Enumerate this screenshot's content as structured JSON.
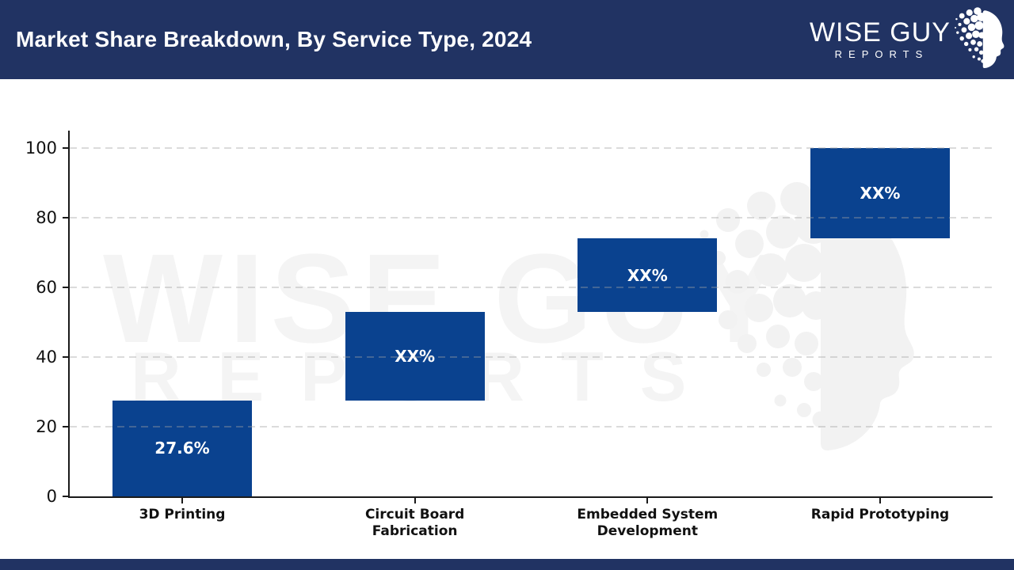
{
  "header": {
    "title": "Market Share Breakdown, By Service Type, 2024",
    "logo": {
      "name": "WISE GUY",
      "sub": "REPORTS"
    }
  },
  "watermark": {
    "line1": "WISE GUY",
    "line2": "REPORTS"
  },
  "colors": {
    "header_bg": "#213363",
    "footer_bg": "#213363",
    "bar": "#0a428f",
    "axis": "#1a1a1a",
    "watermark": "#f2f2f2"
  },
  "chart_data": {
    "type": "bar",
    "subtype": "waterfall",
    "title": "Market Share Breakdown, By Service Type, 2024",
    "categories": [
      "3D Printing",
      "Circuit Board\nFabrication",
      "Embedded System\nDevelopment",
      "Rapid Prototyping"
    ],
    "bars": [
      {
        "category": "3D Printing",
        "start": 0,
        "end": 27.6,
        "label": "27.6%"
      },
      {
        "category": "Circuit Board Fabrication",
        "start": 27.6,
        "end": 53,
        "label": "XX%"
      },
      {
        "category": "Embedded System Development",
        "start": 53,
        "end": 74,
        "label": "XX%"
      },
      {
        "category": "Rapid Prototyping",
        "start": 74,
        "end": 100,
        "label": "XX%"
      }
    ],
    "yticks": [
      0,
      20,
      40,
      60,
      80,
      100
    ],
    "ylim": [
      0,
      105
    ],
    "xlabel": "",
    "ylabel": "",
    "grid": "horizontal-dashed",
    "legend": null
  }
}
